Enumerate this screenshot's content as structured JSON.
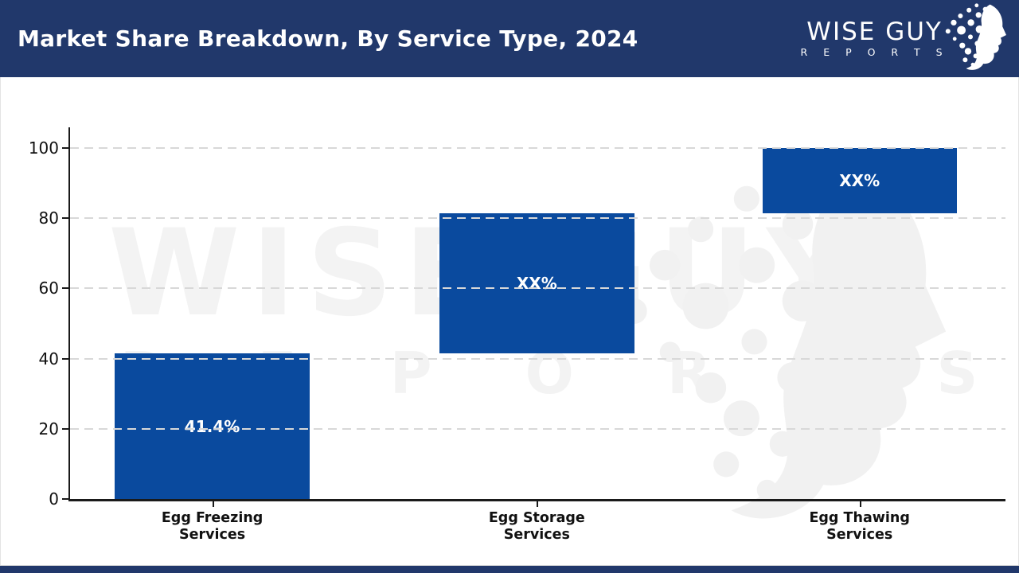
{
  "header": {
    "title": "Market Share Breakdown, By Service Type, 2024",
    "logo": {
      "line1": "WISE GUY",
      "line2": "R E P O R T S",
      "face_icon": "dotted-face-profile"
    }
  },
  "watermark": {
    "line1": "WISE GUY",
    "line2": "R E P O R T S"
  },
  "chart_data": {
    "type": "bar",
    "subtype": "waterfall-percentage",
    "title": "Market Share Breakdown, By Service Type, 2024",
    "categories": [
      {
        "line1": "Egg Freezing",
        "line2": "Services"
      },
      {
        "line1": "Egg Storage",
        "line2": "Services"
      },
      {
        "line1": "Egg Thawing",
        "line2": "Services"
      }
    ],
    "segments": [
      {
        "label": "41.4%",
        "start": 0,
        "end": 41.4
      },
      {
        "label": "XX%",
        "start": 41.4,
        "end": 81.4
      },
      {
        "label": "XX%",
        "start": 81.4,
        "end": 100
      }
    ],
    "yticks": [
      0,
      20,
      40,
      60,
      80,
      100
    ],
    "ylim": [
      0,
      105.9
    ],
    "xlabel": "",
    "ylabel": "",
    "grid": true,
    "legend": "none",
    "bar_color": "#0a4a9e",
    "layout": {
      "bar_centers_pct": [
        15.2,
        49.9,
        84.4
      ],
      "bar_width_pct": 20.8
    }
  },
  "colors": {
    "header_bg": "#21386b",
    "footer_bg": "#21386b",
    "bar": "#0a4a9e",
    "gridline": "#d8d8d8",
    "axis": "#1a1a1a",
    "watermark": "#f3f3f3",
    "bar_label_text": "#ffffff"
  }
}
